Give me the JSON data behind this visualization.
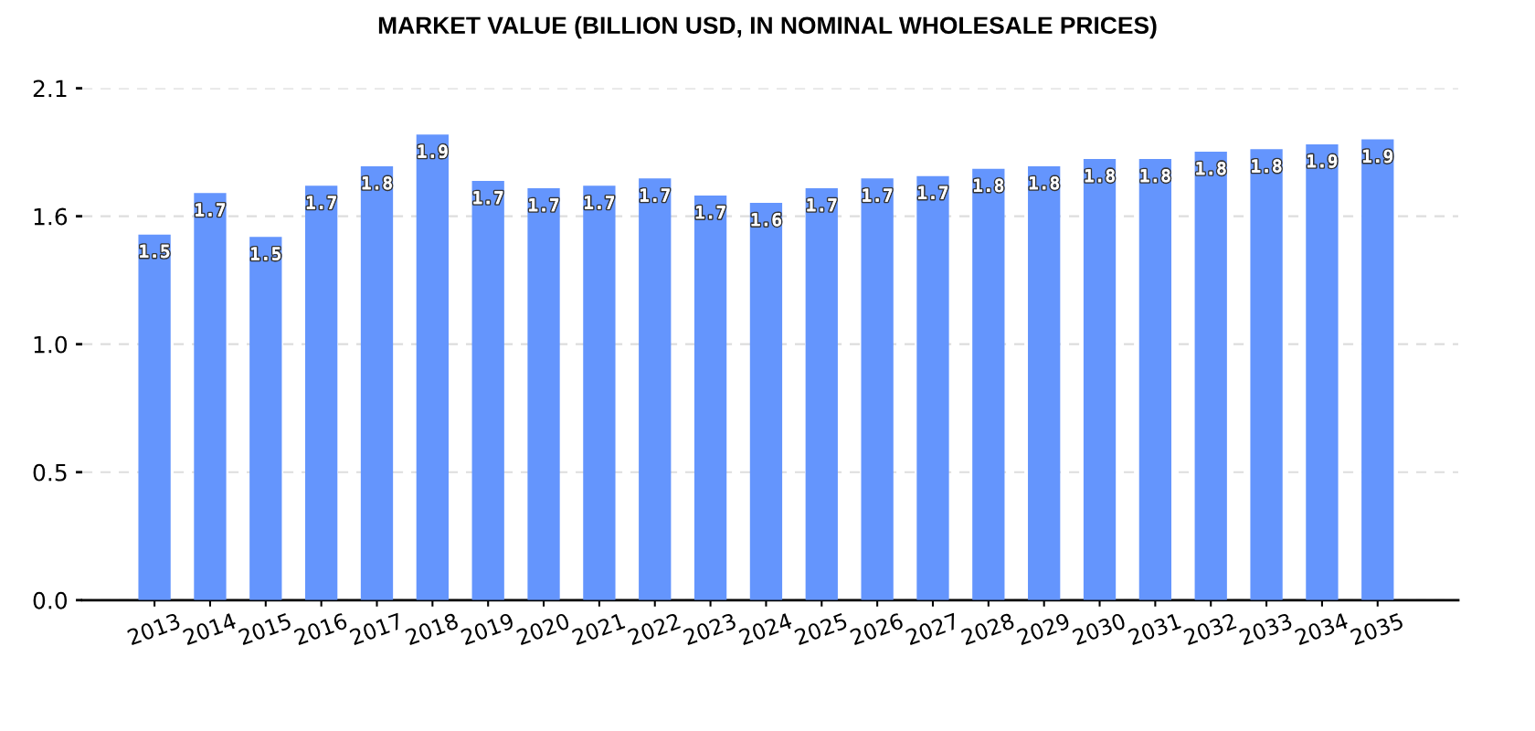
{
  "chart_data": {
    "type": "bar",
    "title": "MARKET VALUE (BILLION USD, IN NOMINAL WHOLESALE PRICES)",
    "categories": [
      "2013",
      "2014",
      "2015",
      "2016",
      "2017",
      "2018",
      "2019",
      "2020",
      "2021",
      "2022",
      "2023",
      "2024",
      "2025",
      "2026",
      "2027",
      "2028",
      "2029",
      "2030",
      "2031",
      "2032",
      "2033",
      "2034",
      "2035"
    ],
    "values": [
      1.5,
      1.67,
      1.49,
      1.7,
      1.78,
      1.91,
      1.72,
      1.69,
      1.7,
      1.73,
      1.66,
      1.63,
      1.69,
      1.73,
      1.74,
      1.77,
      1.78,
      1.81,
      1.81,
      1.84,
      1.85,
      1.87,
      1.89
    ],
    "value_labels": [
      "1.5",
      "1.7",
      "1.5",
      "1.7",
      "1.8",
      "1.9",
      "1.7",
      "1.7",
      "1.7",
      "1.7",
      "1.7",
      "1.6",
      "1.7",
      "1.7",
      "1.7",
      "1.8",
      "1.8",
      "1.8",
      "1.8",
      "1.8",
      "1.8",
      "1.9",
      "1.9"
    ],
    "color": "#6495fd",
    "ylim": [
      0,
      2.1
    ],
    "yticks": [
      {
        "value": 0,
        "label": "0.0"
      },
      {
        "value": 0.525,
        "label": "0.5"
      },
      {
        "value": 1.05,
        "label": "1.0"
      },
      {
        "value": 1.575,
        "label": "1.6"
      },
      2.1
    ],
    "grid": "y"
  }
}
